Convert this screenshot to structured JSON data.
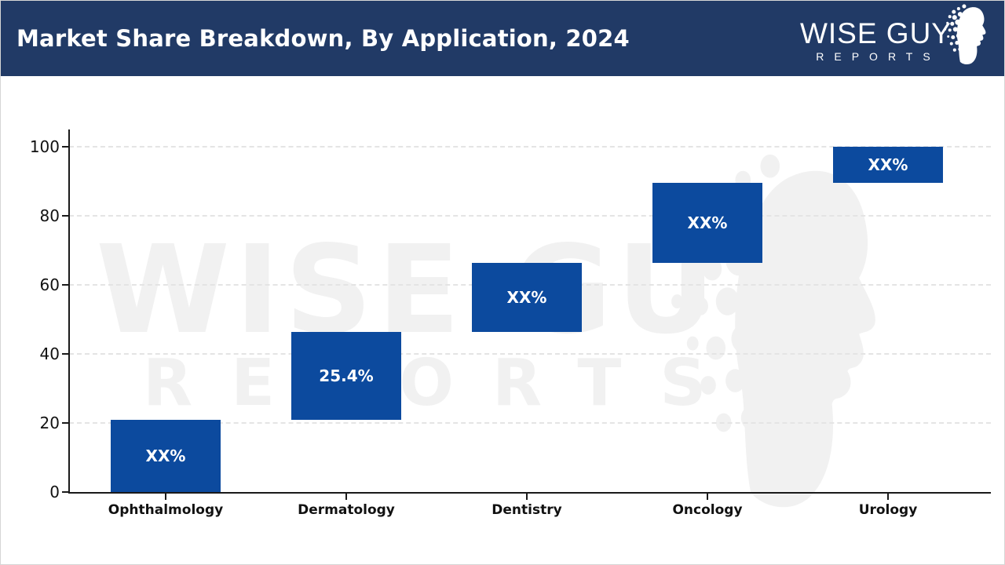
{
  "header": {
    "title": "Market Share Breakdown, By Application, 2024",
    "logo": {
      "line1": "WISE GUY",
      "line2": "REPORTS"
    }
  },
  "watermark": {
    "line1": "WISE GUY",
    "line2": "REPORTS"
  },
  "chart_data": {
    "type": "bar",
    "subtype": "waterfall",
    "title": "Market Share Breakdown, By Application, 2024",
    "xlabel": "",
    "ylabel": "",
    "ylim": [
      0,
      105
    ],
    "y_ticks": [
      0,
      20,
      40,
      60,
      80,
      100
    ],
    "grid": "horizontal-dashed",
    "legend": "none",
    "values_estimated_from_pixels": true,
    "categories": [
      "Ophthalmology",
      "Dermatology",
      "Dentistry",
      "Oncology",
      "Urology"
    ],
    "segments": [
      {
        "category": "Ophthalmology",
        "label": "XX%",
        "start": 0,
        "end": 21
      },
      {
        "category": "Dermatology",
        "label": "25.4%",
        "start": 21,
        "end": 46.4,
        "value": 25.4
      },
      {
        "category": "Dentistry",
        "label": "XX%",
        "start": 46.4,
        "end": 66.4
      },
      {
        "category": "Oncology",
        "label": "XX%",
        "start": 66.4,
        "end": 89.6
      },
      {
        "category": "Urology",
        "label": "XX%",
        "start": 89.6,
        "end": 100
      }
    ],
    "colors": {
      "bar": "#0c4a9e",
      "bar_label": "#ffffff",
      "grid": "#e4e4e4",
      "axis": "#1a1a1a",
      "header_bg": "#213a66",
      "watermark": "#f1f1f1"
    }
  }
}
